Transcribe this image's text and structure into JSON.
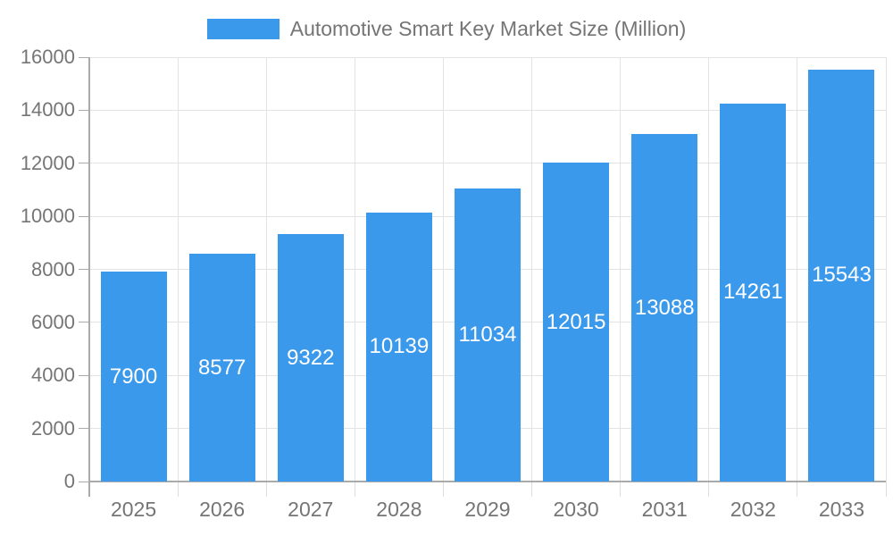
{
  "chart_data": {
    "type": "bar",
    "legend_label": "Automotive Smart Key Market Size (Million)",
    "categories": [
      "2025",
      "2026",
      "2027",
      "2028",
      "2029",
      "2030",
      "2031",
      "2032",
      "2033"
    ],
    "values": [
      7900,
      8577,
      9322,
      10139,
      11034,
      12015,
      13088,
      14261,
      15543
    ],
    "value_labels": [
      "7900",
      "8577",
      "9322",
      "10139",
      "11034",
      "12015",
      "13088",
      "14261",
      "15543"
    ],
    "ylim": [
      0,
      16000
    ],
    "yticks": [
      0,
      2000,
      4000,
      6000,
      8000,
      10000,
      12000,
      14000,
      16000
    ],
    "grid": true,
    "legend_position": "top-center",
    "value_label_position": "inside-center",
    "colors": {
      "bar": "#3B99EC",
      "gridline": "#E3E3E3",
      "axis_line": "#AAAAAA",
      "minor_tick": "#DDDDDD",
      "axis_text": "#757575",
      "legend_text": "#757575",
      "value_text": "#FFFFFF",
      "background": "#FFFFFF"
    }
  }
}
